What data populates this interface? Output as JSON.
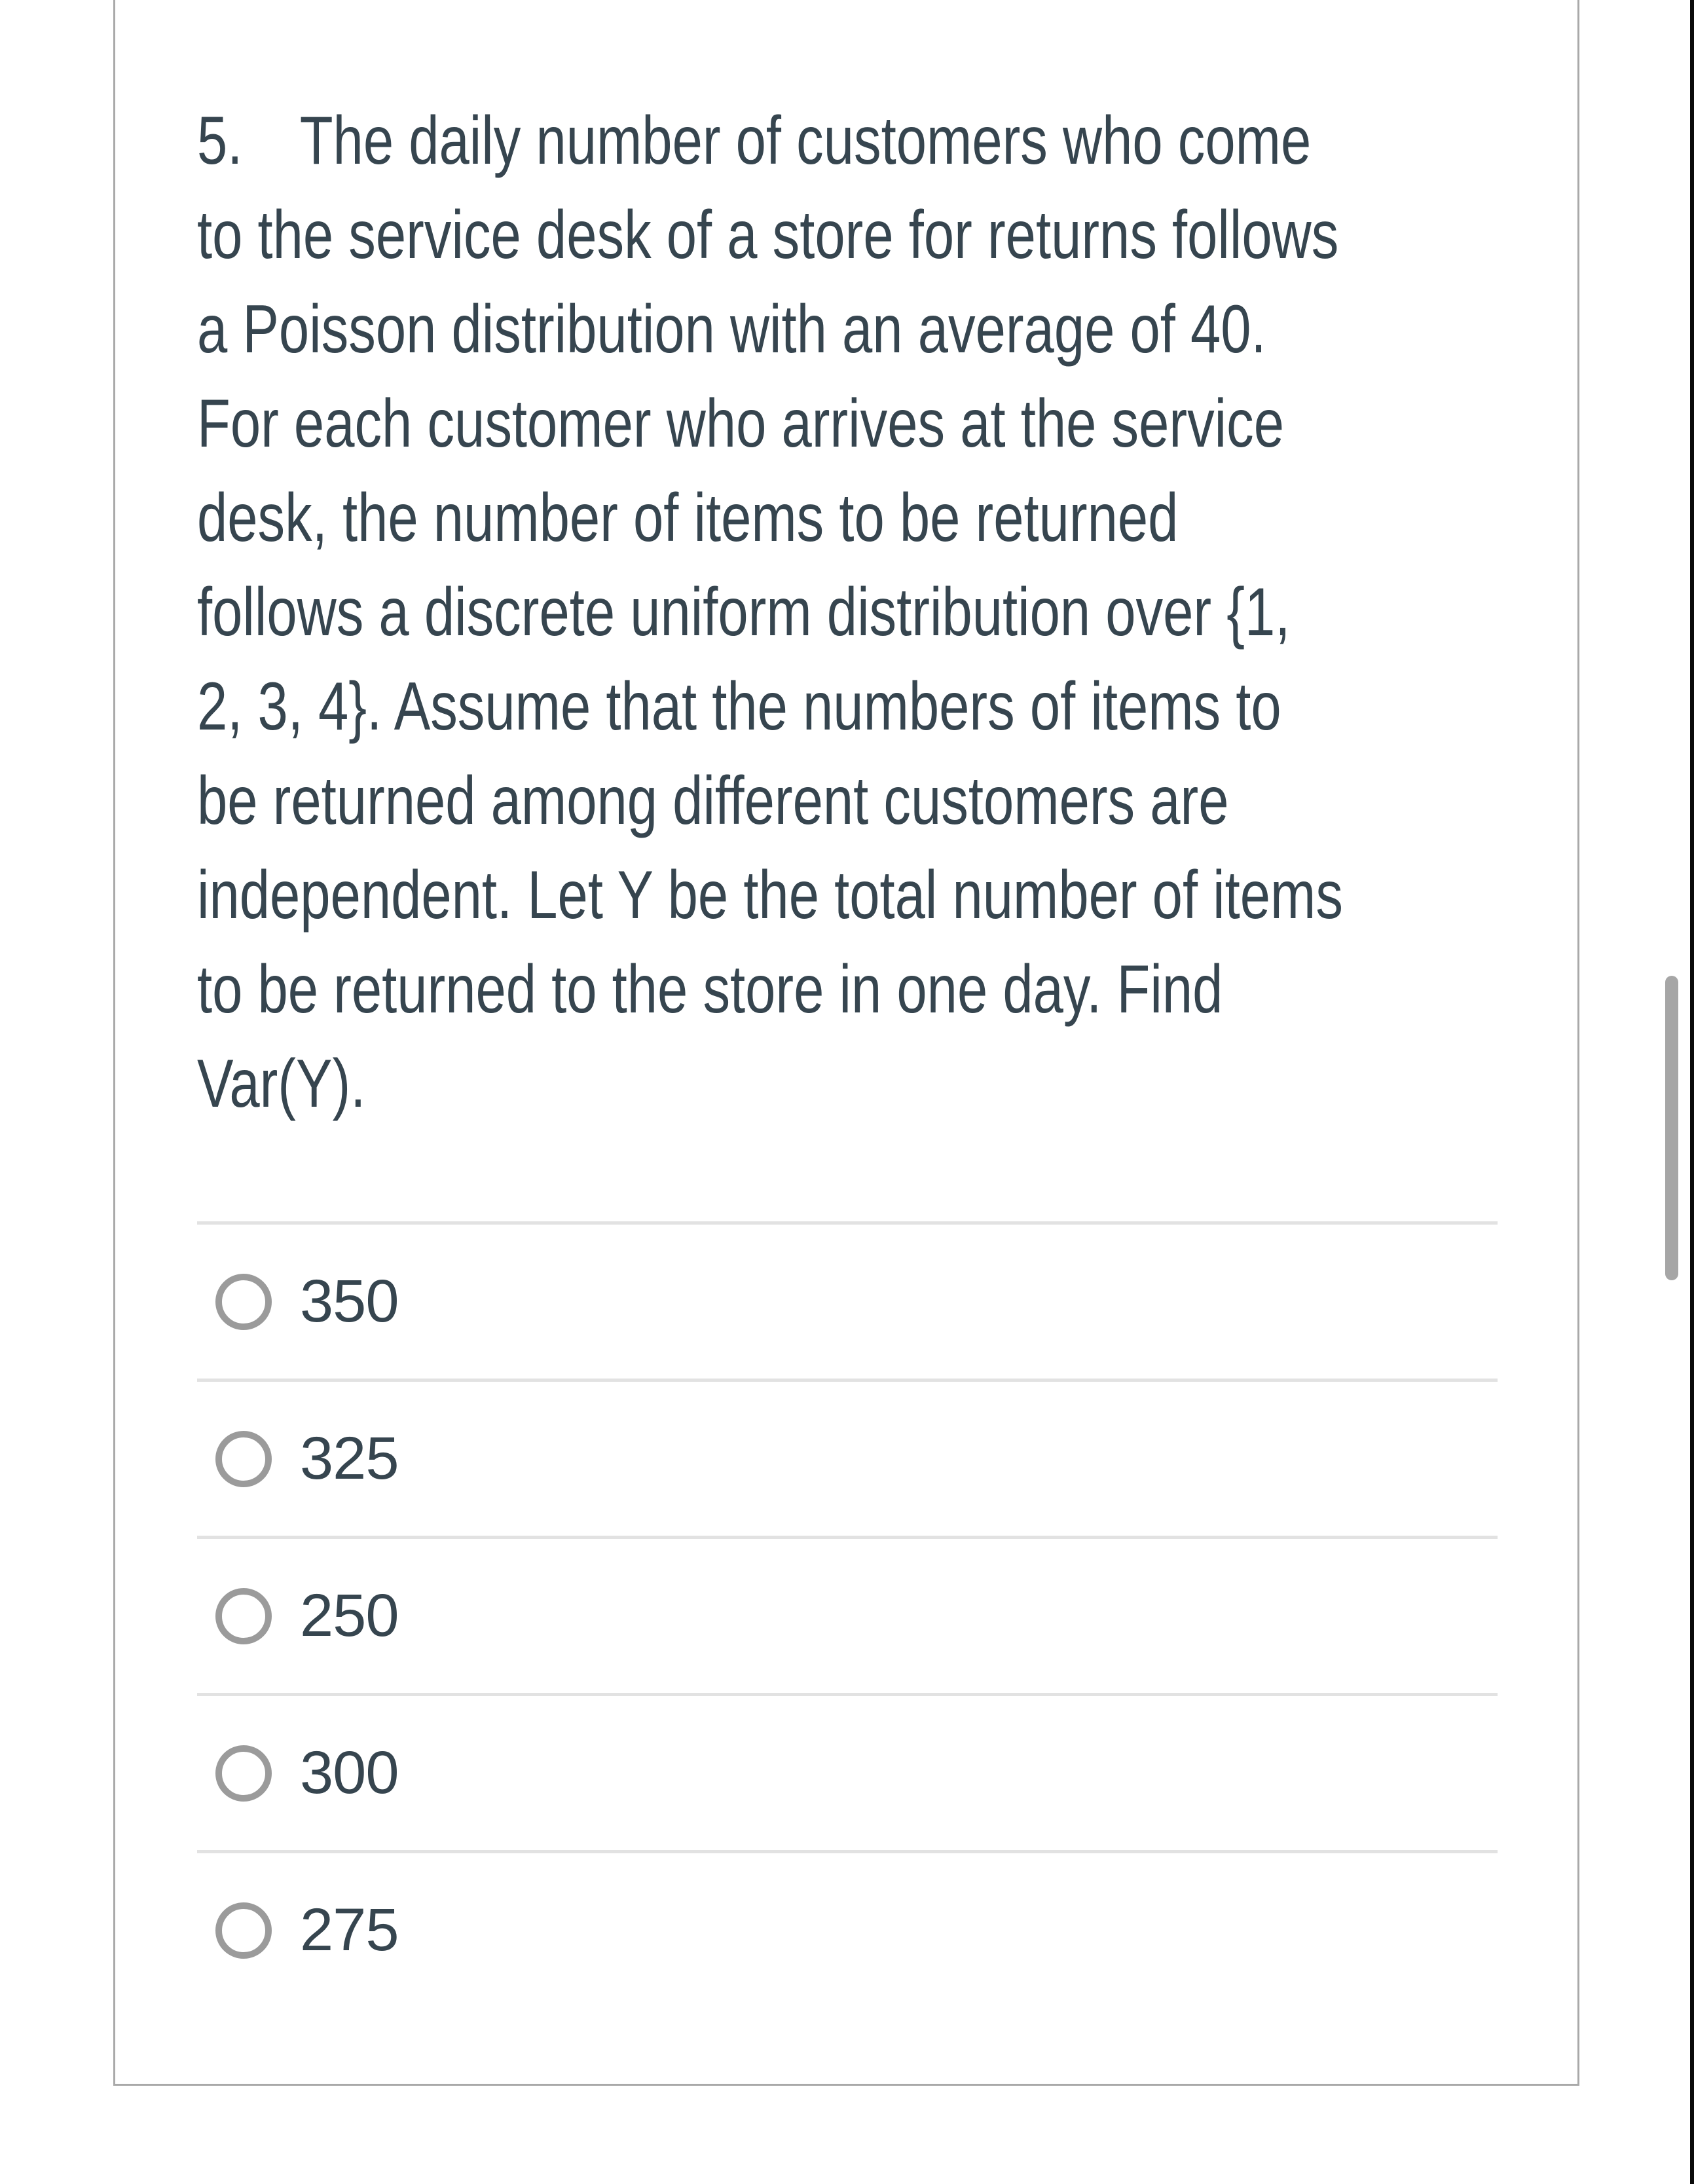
{
  "question": {
    "number": "5.",
    "lines": [
      "The daily number of customers who come",
      "to the service desk of a store for returns follows",
      "a Poisson distribution with an average of 40.",
      "For each customer who arrives at the service",
      "desk, the number of items to be returned",
      "follows a discrete uniform distribution over {1,",
      "2, 3, 4}. Assume that the numbers of items to",
      "be returned among different customers are",
      "independent. Let Y be the total number of items",
      "to be returned to the store in one day. Find",
      "Var(Y)."
    ]
  },
  "options": [
    {
      "label": "350",
      "selected": false
    },
    {
      "label": "325",
      "selected": false
    },
    {
      "label": "250",
      "selected": false
    },
    {
      "label": "300",
      "selected": false
    },
    {
      "label": "275",
      "selected": false
    }
  ],
  "colors": {
    "background": "#ffffff",
    "text": "#36454F",
    "card_border": "#a9a9a9",
    "divider": "#e2e2e2",
    "radio_ring": "#9b9b9b",
    "scrollbar_thumb": "#a6a6a6",
    "edge_strip": "#0a0a0a"
  }
}
